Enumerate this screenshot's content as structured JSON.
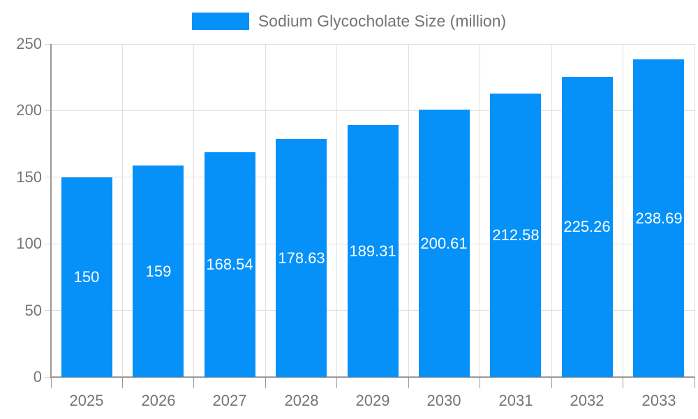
{
  "legend": {
    "label": "Sodium Glycocholate Size (million)"
  },
  "chart_data": {
    "type": "bar",
    "title": "Sodium Glycocholate Size (million)",
    "categories": [
      "2025",
      "2026",
      "2027",
      "2028",
      "2029",
      "2030",
      "2031",
      "2032",
      "2033"
    ],
    "values": [
      150,
      159,
      168.54,
      178.63,
      189.31,
      200.61,
      212.58,
      225.26,
      238.69
    ],
    "value_labels": [
      "150",
      "159",
      "168.54",
      "178.63",
      "189.31",
      "200.61",
      "212.58",
      "225.26",
      "238.69"
    ],
    "xlabel": "",
    "ylabel": "",
    "ylim": [
      0,
      250
    ],
    "yticks": [
      0,
      50,
      100,
      150,
      200,
      250
    ],
    "grid": true,
    "legend_position": "top-center",
    "bar_label_position": "inside-center",
    "colors": {
      "bar": "#0691f9",
      "grid": "#e0e0e0",
      "axis": "#999999",
      "tick": "#d6d6d6",
      "text": "#757575",
      "bar_label": "#ffffff",
      "background": "#ffffff"
    }
  }
}
